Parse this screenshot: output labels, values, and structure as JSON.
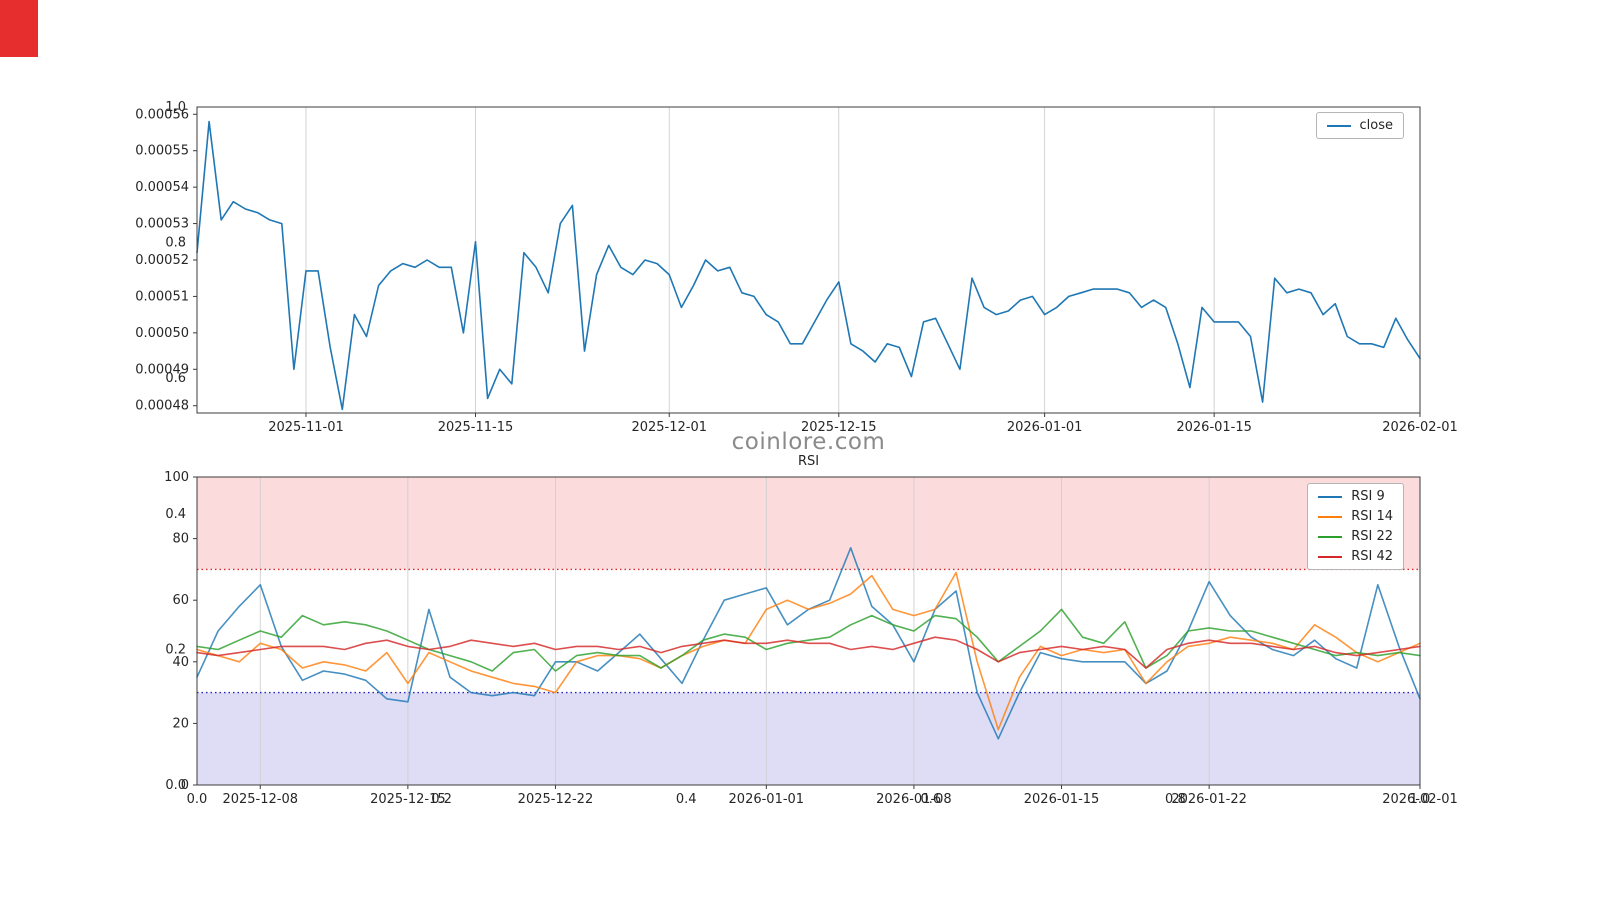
{
  "watermark": "coinlore.com",
  "corner_marker_color": "#e62e2e",
  "figure_axis": {
    "left_ticks": [
      "1.0",
      "0.8",
      "0.6",
      "0.4",
      "0.2",
      "0.0"
    ],
    "bottom_ticks": [
      "0.0",
      "0.2",
      "0.4",
      "0.6",
      "0.8",
      "1.0"
    ]
  },
  "chart_data": [
    {
      "id": "price",
      "type": "line",
      "x_start_date": "2025-10-23",
      "x_interval": "1 day",
      "ylim": [
        0.000478,
        0.000562
      ],
      "y_ticks": [
        0.00048,
        0.00049,
        0.0005,
        0.00051,
        0.00052,
        0.00053,
        0.00054,
        0.00055,
        0.00056
      ],
      "y_tick_decimals": 5,
      "x_ticks": [
        {
          "label": "2025-11-01",
          "i": 9
        },
        {
          "label": "2025-11-15",
          "i": 23
        },
        {
          "label": "2025-12-01",
          "i": 39
        },
        {
          "label": "2025-12-15",
          "i": 53
        },
        {
          "label": "2026-01-01",
          "i": 70
        },
        {
          "label": "2026-01-15",
          "i": 84
        },
        {
          "label": "2026-02-01",
          "i": 101
        }
      ],
      "grid": "vertical",
      "legend_position": "upper right",
      "series": [
        {
          "name": "close",
          "color": "#1f77b4",
          "values": [
            0.000522,
            0.000558,
            0.000531,
            0.000536,
            0.000534,
            0.000533,
            0.000531,
            0.00053,
            0.00049,
            0.000517,
            0.000517,
            0.000496,
            0.000479,
            0.000505,
            0.000499,
            0.000513,
            0.000517,
            0.000519,
            0.000518,
            0.00052,
            0.000518,
            0.000518,
            0.0005,
            0.000525,
            0.000482,
            0.00049,
            0.000486,
            0.000522,
            0.000518,
            0.000511,
            0.00053,
            0.000535,
            0.000495,
            0.000516,
            0.000524,
            0.000518,
            0.000516,
            0.00052,
            0.000519,
            0.000516,
            0.000507,
            0.000513,
            0.00052,
            0.000517,
            0.000518,
            0.000511,
            0.00051,
            0.000505,
            0.000503,
            0.000497,
            0.000497,
            0.000503,
            0.000509,
            0.000514,
            0.000497,
            0.000495,
            0.000492,
            0.000497,
            0.000496,
            0.000488,
            0.000503,
            0.000504,
            0.000497,
            0.00049,
            0.000515,
            0.000507,
            0.000505,
            0.000506,
            0.000509,
            0.00051,
            0.000505,
            0.000507,
            0.00051,
            0.000511,
            0.000512,
            0.000512,
            0.000512,
            0.000511,
            0.000507,
            0.000509,
            0.000507,
            0.000497,
            0.000485,
            0.000507,
            0.000503,
            0.000503,
            0.000503,
            0.000499,
            0.000481,
            0.000515,
            0.000511,
            0.000512,
            0.000511,
            0.000505,
            0.000508,
            0.000499,
            0.000497,
            0.000497,
            0.000496,
            0.000504,
            0.000498,
            0.000493
          ]
        }
      ]
    },
    {
      "id": "rsi",
      "type": "line",
      "title": "RSI",
      "x_start_date": "2025-12-05",
      "x_interval": "1 day",
      "ylim": [
        0,
        100
      ],
      "y_ticks": [
        0,
        20,
        40,
        60,
        80,
        100
      ],
      "x_ticks": [
        {
          "label": "2025-12-08",
          "i": 3
        },
        {
          "label": "2025-12-15",
          "i": 10
        },
        {
          "label": "2025-12-22",
          "i": 17
        },
        {
          "label": "2026-01-01",
          "i": 27
        },
        {
          "label": "2026-01-08",
          "i": 34
        },
        {
          "label": "2026-01-15",
          "i": 41
        },
        {
          "label": "2026-01-22",
          "i": 48
        },
        {
          "label": "2026-02-01",
          "i": 58
        }
      ],
      "grid": "vertical",
      "legend_position": "upper right",
      "bands": [
        {
          "from": 70,
          "to": 100,
          "color": "#fcdbdd",
          "meaning": "overbought"
        },
        {
          "from": 0,
          "to": 30,
          "color": "#deddf5",
          "meaning": "oversold"
        }
      ],
      "hlines": [
        {
          "y": 70,
          "color": "#d42a2a",
          "style": "dotted"
        },
        {
          "y": 30,
          "color": "#2323b4",
          "style": "dotted"
        }
      ],
      "series": [
        {
          "name": "RSI 9",
          "color": "#1f77b4",
          "values": [
            35,
            50,
            58,
            65,
            45,
            34,
            37,
            36,
            34,
            28,
            27,
            57,
            35,
            30,
            29,
            30,
            29,
            40,
            40,
            37,
            43,
            49,
            41,
            33,
            47,
            60,
            62,
            64,
            52,
            57,
            60,
            77,
            58,
            52,
            40,
            57,
            63,
            30,
            15,
            30,
            43,
            41,
            40,
            40,
            40,
            33,
            37,
            50,
            66,
            55,
            48,
            44,
            42,
            47,
            41,
            38,
            65,
            45,
            28
          ]
        },
        {
          "name": "RSI 14",
          "color": "#ff7f0e",
          "values": [
            44,
            42,
            40,
            46,
            44,
            38,
            40,
            39,
            37,
            43,
            33,
            43,
            40,
            37,
            35,
            33,
            32,
            30,
            40,
            42,
            42,
            41,
            38,
            42,
            45,
            47,
            46,
            57,
            60,
            57,
            59,
            62,
            68,
            57,
            55,
            57,
            69,
            40,
            18,
            35,
            45,
            42,
            44,
            43,
            44,
            33,
            40,
            45,
            46,
            48,
            47,
            46,
            44,
            52,
            48,
            43,
            40,
            43,
            46
          ]
        },
        {
          "name": "RSI 22",
          "color": "#2ca02c",
          "values": [
            45,
            44,
            47,
            50,
            48,
            55,
            52,
            53,
            52,
            50,
            47,
            44,
            42,
            40,
            37,
            43,
            44,
            37,
            42,
            43,
            42,
            42,
            38,
            42,
            47,
            49,
            48,
            44,
            46,
            47,
            48,
            52,
            55,
            52,
            50,
            55,
            54,
            48,
            40,
            45,
            50,
            57,
            48,
            46,
            53,
            38,
            42,
            50,
            51,
            50,
            50,
            48,
            46,
            44,
            42,
            43,
            42,
            43,
            42
          ]
        },
        {
          "name": "RSI 42",
          "color": "#d62728",
          "values": [
            43,
            42,
            43,
            44,
            45,
            45,
            45,
            44,
            46,
            47,
            45,
            44,
            45,
            47,
            46,
            45,
            46,
            44,
            45,
            45,
            44,
            45,
            43,
            45,
            46,
            47,
            46,
            46,
            47,
            46,
            46,
            44,
            45,
            44,
            46,
            48,
            47,
            44,
            40,
            43,
            44,
            45,
            44,
            45,
            44,
            38,
            44,
            46,
            47,
            46,
            46,
            45,
            44,
            45,
            43,
            42,
            43,
            44,
            45
          ]
        }
      ]
    }
  ]
}
